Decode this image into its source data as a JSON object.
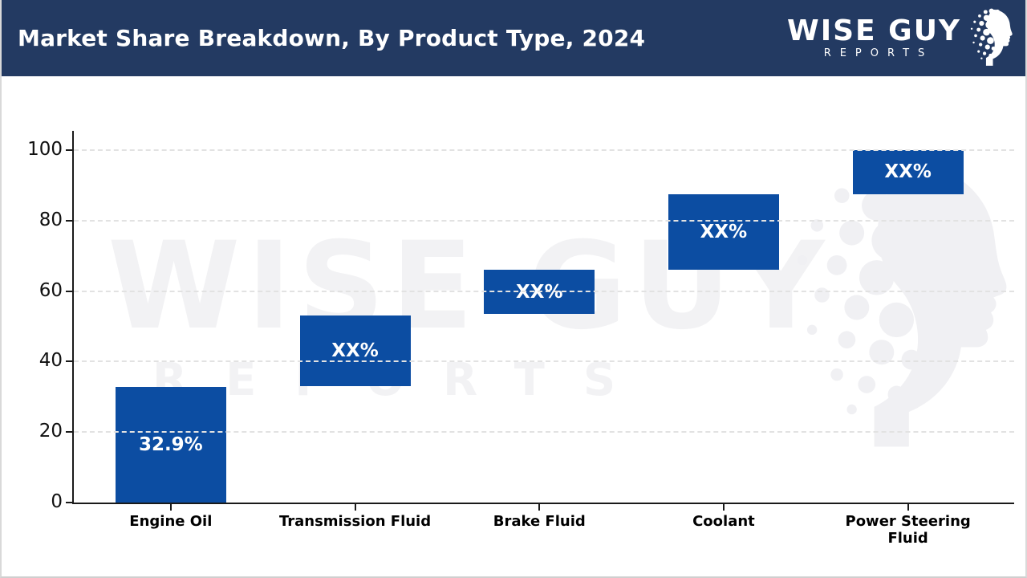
{
  "header": {
    "title": "Market Share Breakdown, By Product Type, 2024",
    "logo": {
      "line1": "WISE GUY",
      "line2": "REPORTS"
    }
  },
  "watermark": {
    "line1": "WISE GUY",
    "line2": "REPORTS"
  },
  "colors": {
    "header_bg": "#233a62",
    "bar_blue": "#0c4da2",
    "bar_label": "#ffffff",
    "gridline": "#e2e2e2",
    "axis": "#1a1a1a",
    "watermark": "#f2f2f4"
  },
  "chart_data": {
    "type": "bar",
    "subtype": "waterfall",
    "title": "Market Share Breakdown, By Product Type, 2024",
    "xlabel": "",
    "ylabel": "",
    "categories": [
      "Engine Oil",
      "Transmission Fluid",
      "Brake Fluid",
      "Coolant",
      "Power Steering\nFluid"
    ],
    "series": [
      {
        "name": "Market Share (%)",
        "ranges": [
          [
            0,
            32.9
          ],
          [
            33,
            53
          ],
          [
            53.5,
            66
          ],
          [
            66,
            87.5
          ],
          [
            87.5,
            100
          ]
        ],
        "labels": [
          "32.9%",
          "XX%",
          "XX%",
          "XX%",
          "XX%"
        ]
      }
    ],
    "ylim": [
      0,
      100
    ],
    "yticks": [
      0,
      20,
      40,
      60,
      80,
      100
    ],
    "grid": "horizontal-dashed",
    "legend": "none"
  }
}
